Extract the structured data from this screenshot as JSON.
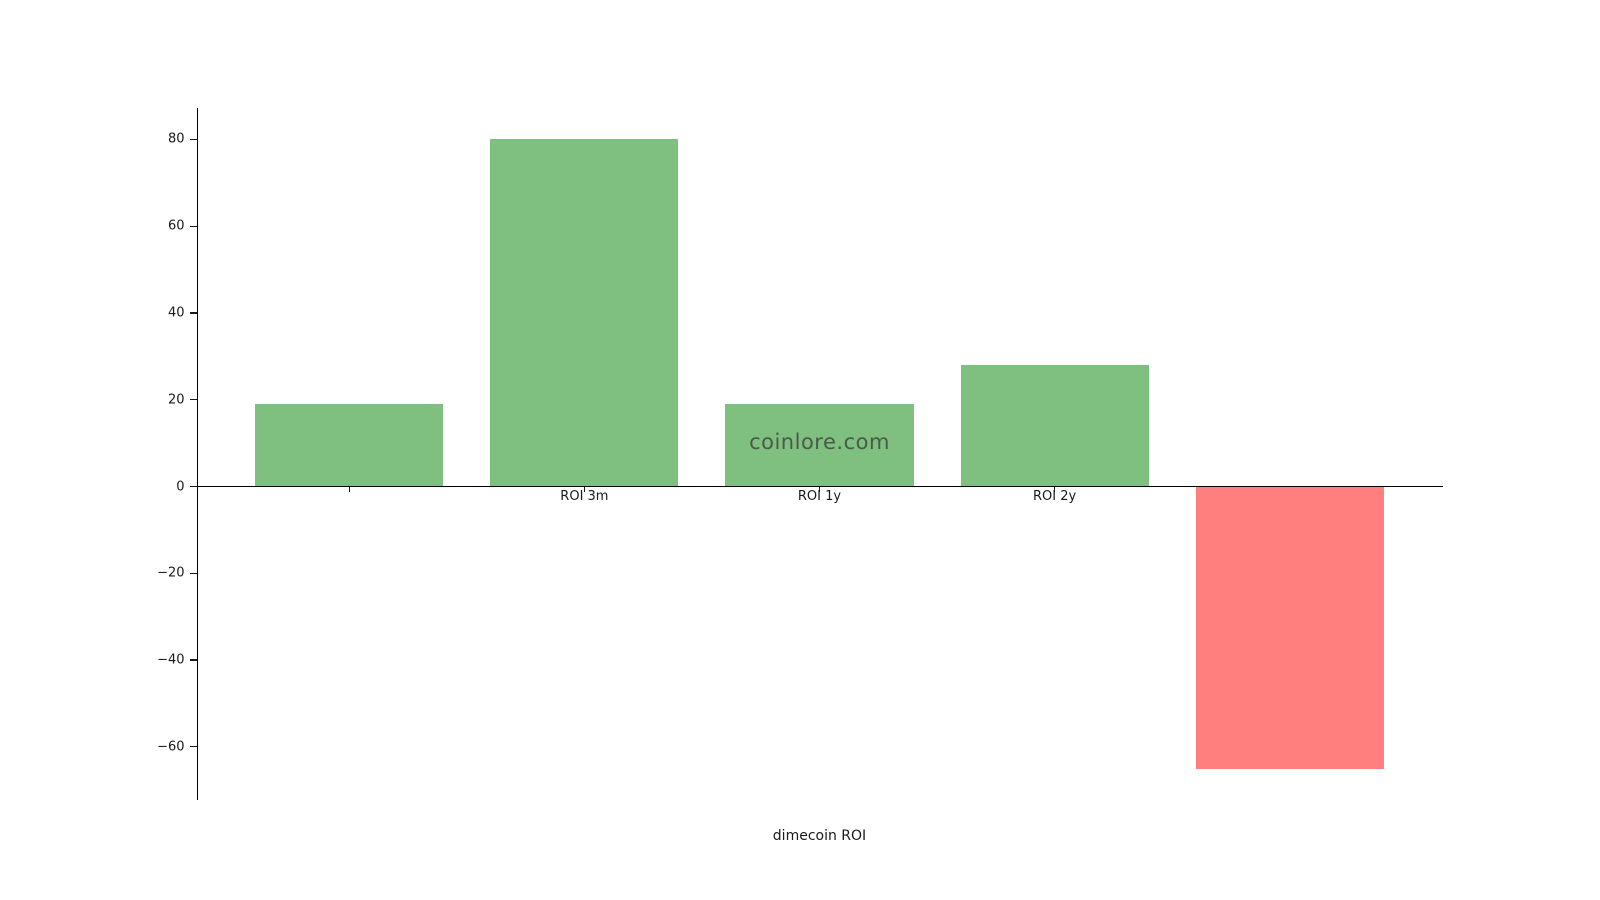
{
  "chart_data": {
    "type": "bar",
    "categories": [
      "",
      "ROI 3m",
      "ROI 1y",
      "ROI 2y",
      ""
    ],
    "values": [
      19,
      80,
      19,
      28,
      -65
    ],
    "bar_colors": [
      "#7fbf7f",
      "#7fbf7f",
      "#7fbf7f",
      "#7fbf7f",
      "#ff7f7f"
    ],
    "title": "",
    "xlabel": "dimecoin ROI",
    "ylabel": "",
    "yticks": [
      80,
      60,
      40,
      20,
      0,
      -20,
      -40,
      -60
    ],
    "ylim": [
      -72.25,
      87.25
    ],
    "grid": false,
    "legend": "none",
    "watermark": "coinlore.com"
  },
  "colors": {
    "positive_bar": "#7fbf7f",
    "negative_bar": "#ff7f7f",
    "axis": "#000000",
    "tick_text": "#1a1a1a",
    "watermark_text": "#3c3c3c"
  }
}
